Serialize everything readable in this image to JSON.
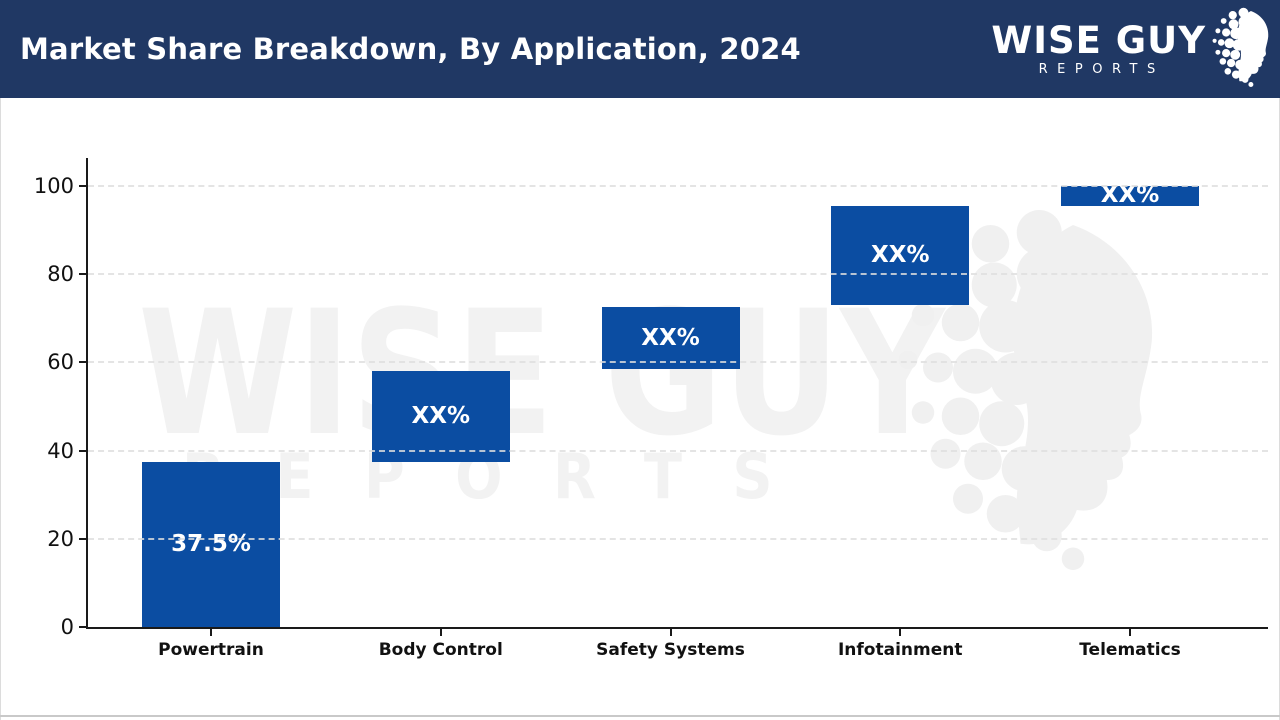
{
  "header": {
    "title": "Market Share Breakdown, By Application, 2024",
    "background_color": "#203864",
    "logo": {
      "line1": "WISE GUY",
      "line2": "REPORTS",
      "head_icon": "dotted-face-profile"
    }
  },
  "watermark": {
    "line1": "WISE GUY",
    "line2": "REPORTS",
    "head_icon": "dotted-face-profile",
    "color": "#f2f2f2"
  },
  "chart_data": {
    "type": "bar",
    "subtype": "waterfall",
    "title": "Market Share Breakdown, By Application, 2024",
    "categories": [
      "Powertrain",
      "Body Control",
      "Safety Systems",
      "Infotainment",
      "Telematics"
    ],
    "segments": [
      {
        "category": "Powertrain",
        "start": 0,
        "end": 37.5,
        "label": "37.5%"
      },
      {
        "category": "Body Control",
        "start": 37.5,
        "end": 58,
        "label": "XX%"
      },
      {
        "category": "Safety Systems",
        "start": 58.5,
        "end": 72.5,
        "label": "XX%"
      },
      {
        "category": "Infotainment",
        "start": 73,
        "end": 95.5,
        "label": "XX%"
      },
      {
        "category": "Telematics",
        "start": 95.5,
        "end": 100,
        "label": "XX%"
      }
    ],
    "yticks": [
      0,
      20,
      40,
      60,
      80,
      100
    ],
    "ylim": [
      0,
      106
    ],
    "xlabel": "",
    "ylabel": "",
    "grid": "horizontal-dashed",
    "legend": "none",
    "bar_color": "#0b4da2",
    "bar_label_color": "#ffffff",
    "axis_color": "#1a1a1a"
  }
}
